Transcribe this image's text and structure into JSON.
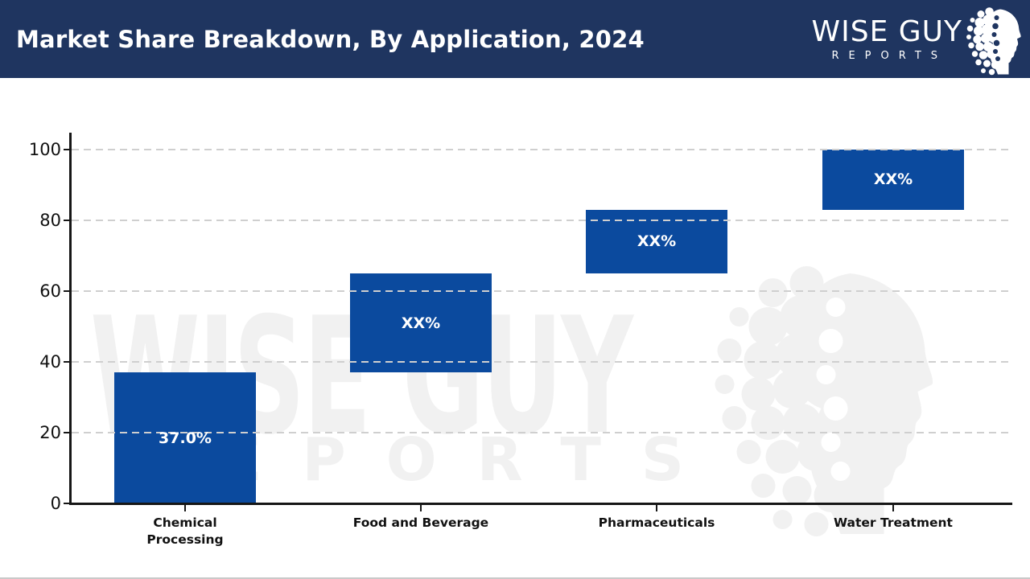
{
  "header": {
    "title": "Market Share Breakdown, By Application, 2024",
    "brand": {
      "line1": "WISE GUY",
      "line2": "REPORTS"
    }
  },
  "watermark": {
    "line1": "WISE GUY",
    "line2": "REPORTS"
  },
  "chart_data": {
    "type": "bar",
    "subtype": "waterfall",
    "title": "Market Share Breakdown, By Application, 2024",
    "categories": [
      "Chemical Processing",
      "Food and Beverage",
      "Pharmaceuticals",
      "Water Treatment"
    ],
    "segments": [
      {
        "category": "Chemical Processing",
        "start": 0,
        "end": 37,
        "label": "37.0%"
      },
      {
        "category": "Food and Beverage",
        "start": 37,
        "end": 65,
        "label": "XX%"
      },
      {
        "category": "Pharmaceuticals",
        "start": 65,
        "end": 83,
        "label": "XX%"
      },
      {
        "category": "Water Treatment",
        "start": 83,
        "end": 100,
        "label": "XX%"
      }
    ],
    "y_ticks": [
      0,
      20,
      40,
      60,
      80,
      100
    ],
    "ylim": [
      0,
      100
    ],
    "xlabel": "",
    "ylabel": "",
    "grid": "horizontal-dashed",
    "legend": "none",
    "bar_color": "#0b4a9e",
    "bar_label_color": "#ffffff",
    "axis_color": "#161616"
  },
  "colors": {
    "header_bg": "#1f3560",
    "bar": "#0b4a9e",
    "grid": "#cfcfcf",
    "watermark": "#f1f1f1",
    "footer_line": "#c9c9c9"
  }
}
